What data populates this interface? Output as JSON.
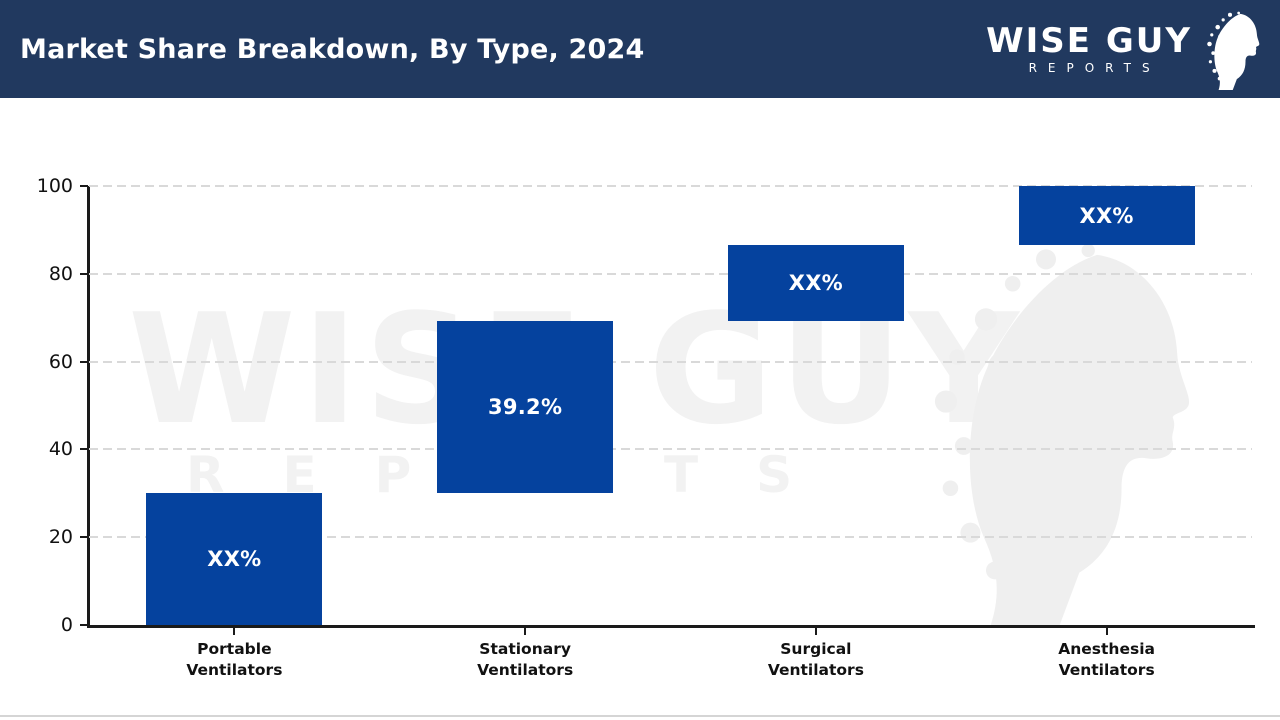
{
  "header": {
    "title": "Market Share Breakdown, By Type, 2024",
    "bg_color": "#21395f",
    "logo_line1": "WISE GUY",
    "logo_line2": "REPORTS"
  },
  "watermark": {
    "line1": "WISE GUY",
    "line2": "REPORTS"
  },
  "chart_data": {
    "type": "bar",
    "subtype": "stacked-waterfall",
    "title": "Market Share Breakdown, By Type, 2024",
    "categories": [
      [
        "Portable",
        "Ventilators"
      ],
      [
        "Stationary",
        "Ventilators"
      ],
      [
        "Surgical",
        "Ventilators"
      ],
      [
        "Anesthesia",
        "Ventilators"
      ]
    ],
    "segments": [
      {
        "category": "Portable Ventilators",
        "start": 0,
        "end": 30,
        "label": "XX%"
      },
      {
        "category": "Stationary Ventilators",
        "start": 30,
        "end": 69.2,
        "label": "39.2%"
      },
      {
        "category": "Surgical Ventilators",
        "start": 69.2,
        "end": 86.5,
        "label": "XX%"
      },
      {
        "category": "Anesthesia Ventilators",
        "start": 86.5,
        "end": 100,
        "label": "XX%"
      }
    ],
    "ylim": [
      0,
      100
    ],
    "yticks": [
      0,
      20,
      40,
      60,
      80,
      100
    ],
    "xlabel": "",
    "ylabel": "",
    "grid": "horizontal-dashed",
    "legend": "none",
    "colors": {
      "bar": "#05429e",
      "bar_label": "#ffffff",
      "axis": "#1a1a1a",
      "grid": "#d9d9d9",
      "header_bg": "#21395f",
      "watermark": "#f1f1f1"
    }
  }
}
